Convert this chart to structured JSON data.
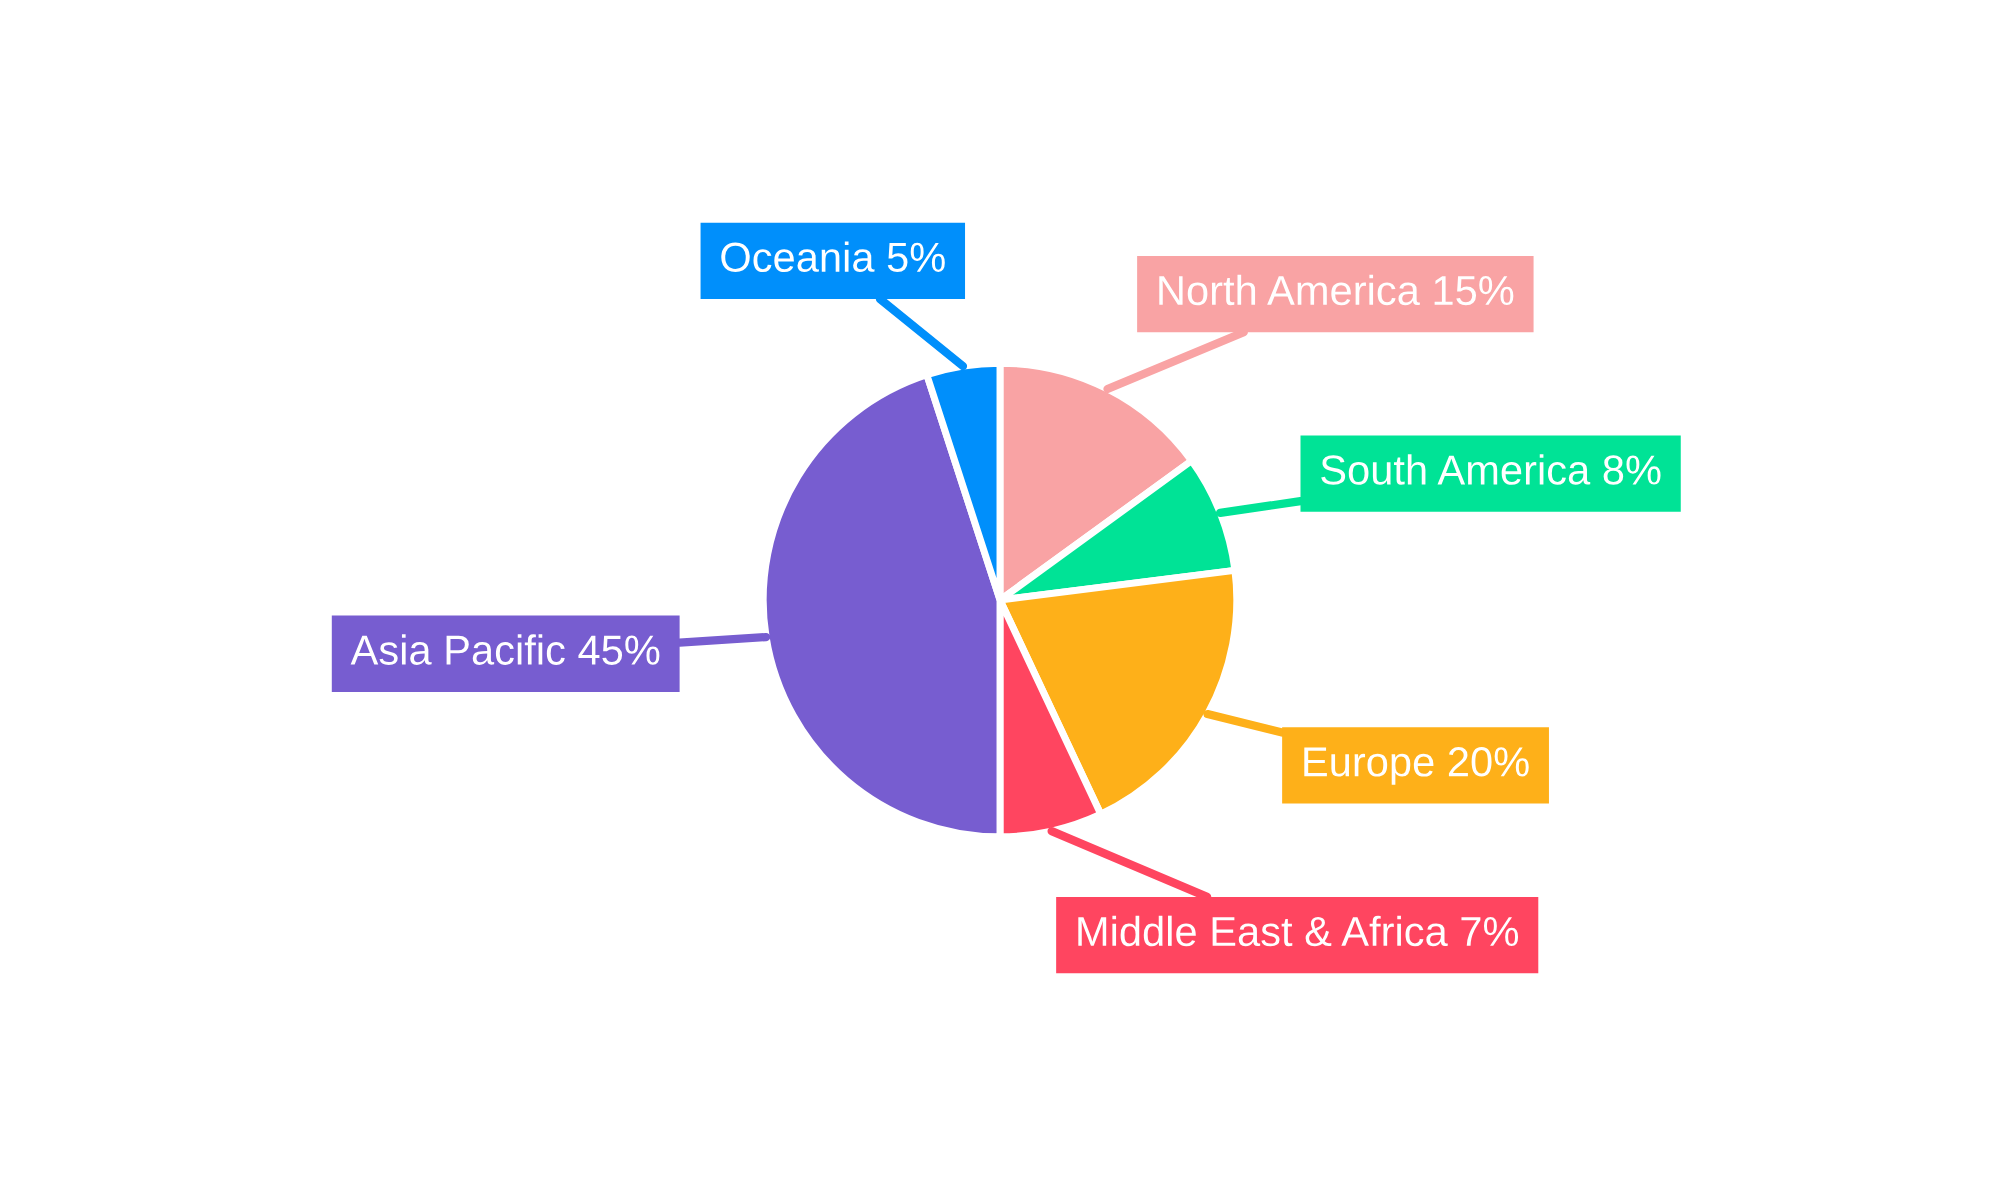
{
  "chart_data": {
    "type": "pie",
    "categories": [
      "North America",
      "South America",
      "Europe",
      "Middle East & Africa",
      "Asia Pacific",
      "Oceania"
    ],
    "values": [
      15,
      8,
      20,
      7,
      45,
      5
    ],
    "value_labels": [
      "15%",
      "8%",
      "20%",
      "7%",
      "45%",
      "5%"
    ],
    "colors": [
      "#f9a3a4",
      "#00e396",
      "#feb019",
      "#ff4560",
      "#775dd0",
      "#008ffb"
    ],
    "legend": false
  }
}
